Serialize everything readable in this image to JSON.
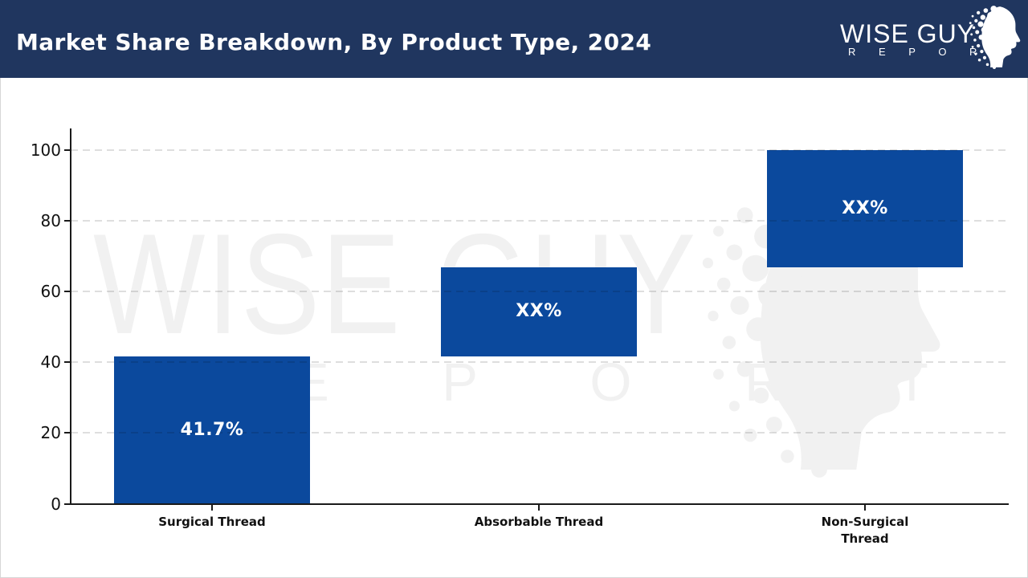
{
  "header": {
    "title": "Market Share Breakdown, By Product Type, 2024",
    "logo": {
      "name_line": "WISE GUY",
      "reports_line": "R E P O R T S"
    }
  },
  "watermark": {
    "name_line": "WISE GUY",
    "reports_line": "R E P O R T S"
  },
  "chart_data": {
    "type": "bar",
    "subtype": "waterfall",
    "title": "Market Share Breakdown, By Product Type, 2024",
    "categories": [
      "Surgical Thread",
      "Absorbable Thread",
      "Non-Surgical Thread"
    ],
    "category_label_lines": [
      [
        "Surgical Thread"
      ],
      [
        "Absorbable Thread"
      ],
      [
        "Non-Surgical",
        "Thread"
      ]
    ],
    "series": [
      {
        "name": "Market share (%)",
        "segments": [
          {
            "category": "Surgical Thread",
            "start": 0,
            "end": 41.7,
            "label": "41.7%"
          },
          {
            "category": "Absorbable Thread",
            "start": 41.7,
            "end": 66.7,
            "label": "XX%"
          },
          {
            "category": "Non-Surgical Thread",
            "start": 66.7,
            "end": 100,
            "label": "XX%"
          }
        ]
      }
    ],
    "ylim": [
      0,
      100
    ],
    "yticks": [
      0,
      20,
      40,
      60,
      80,
      100
    ],
    "xlabel": "",
    "ylabel": "",
    "grid": true,
    "grid_style": "dashed",
    "legend": false,
    "bar_color": "#0B499D",
    "bar_label_color": "#FFFFFF"
  },
  "colors": {
    "header_bg": "#20365F",
    "background": "#FFFFFF",
    "watermark": "#F1F1F1",
    "axis": "#1A1A1A"
  }
}
